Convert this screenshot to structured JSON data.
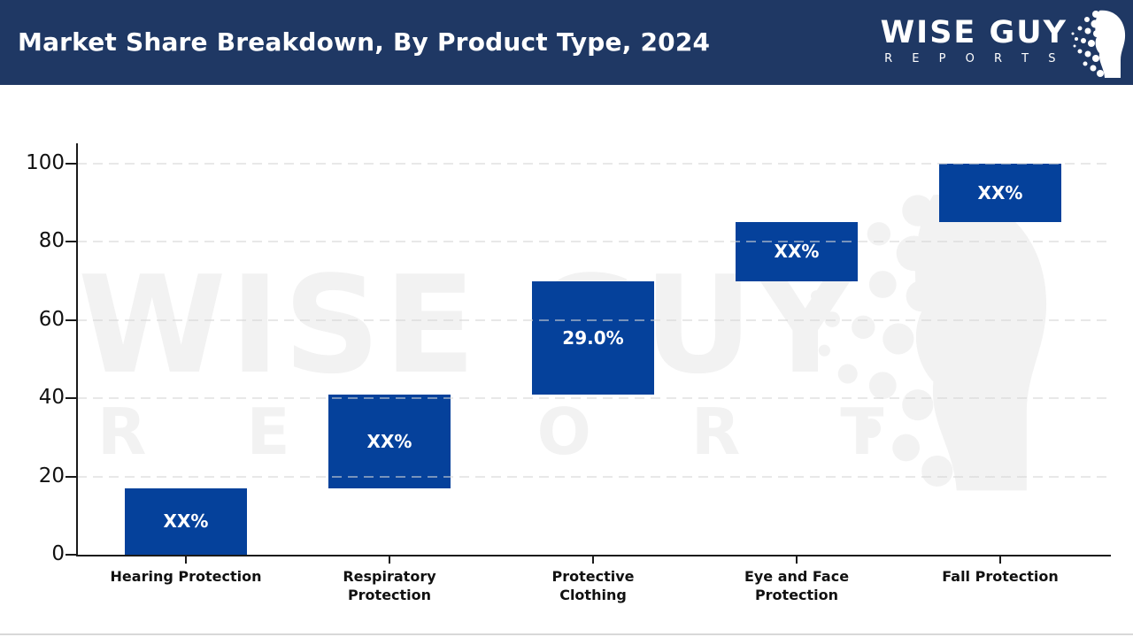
{
  "header": {
    "title": "Market Share Breakdown, By Product Type, 2024",
    "logo": {
      "line1": "WISE GUY",
      "line2": "R E P O R T S"
    }
  },
  "watermark": {
    "line1": "WISE GUY",
    "line2": "R E P O R T S"
  },
  "chart_data": {
    "type": "bar",
    "variant": "waterfall",
    "title": "Market Share Breakdown, By Product Type, 2024",
    "xlabel": "",
    "ylabel": "",
    "ylim": [
      0,
      106
    ],
    "yticks": [
      0,
      20,
      40,
      60,
      80,
      100
    ],
    "grid": "horizontal-dashed",
    "legend": "none",
    "categories": [
      "Hearing Protection",
      "Respiratory Protection",
      "Protective Clothing",
      "Eye and Face Protection",
      "Fall Protection"
    ],
    "segments": [
      {
        "category": "Hearing Protection",
        "lines": [
          "Hearing Protection"
        ],
        "start": 0,
        "end": 17,
        "value": 17,
        "label": "XX%"
      },
      {
        "category": "Respiratory Protection",
        "lines": [
          "Respiratory",
          "Protection"
        ],
        "start": 17,
        "end": 41,
        "value": 24,
        "label": "XX%"
      },
      {
        "category": "Protective Clothing",
        "lines": [
          "Protective",
          "Clothing"
        ],
        "start": 41,
        "end": 70,
        "value": 29,
        "label": "29.0%"
      },
      {
        "category": "Eye and Face Protection",
        "lines": [
          "Eye and Face",
          "Protection"
        ],
        "start": 70,
        "end": 85,
        "value": 15,
        "label": "XX%"
      },
      {
        "category": "Fall Protection",
        "lines": [
          "Fall Protection"
        ],
        "start": 85,
        "end": 100,
        "value": 15,
        "label": "XX%"
      }
    ],
    "colors": {
      "header_bg": "#1F3864",
      "bar": "#05419B",
      "bar_label": "#FFFFFF",
      "axis": "#1A1A1A",
      "grid": "#DEDEDE",
      "watermark": "#F2F2F2",
      "tick_text": "#111111",
      "bottom_rule": "#D8D8D8"
    }
  }
}
